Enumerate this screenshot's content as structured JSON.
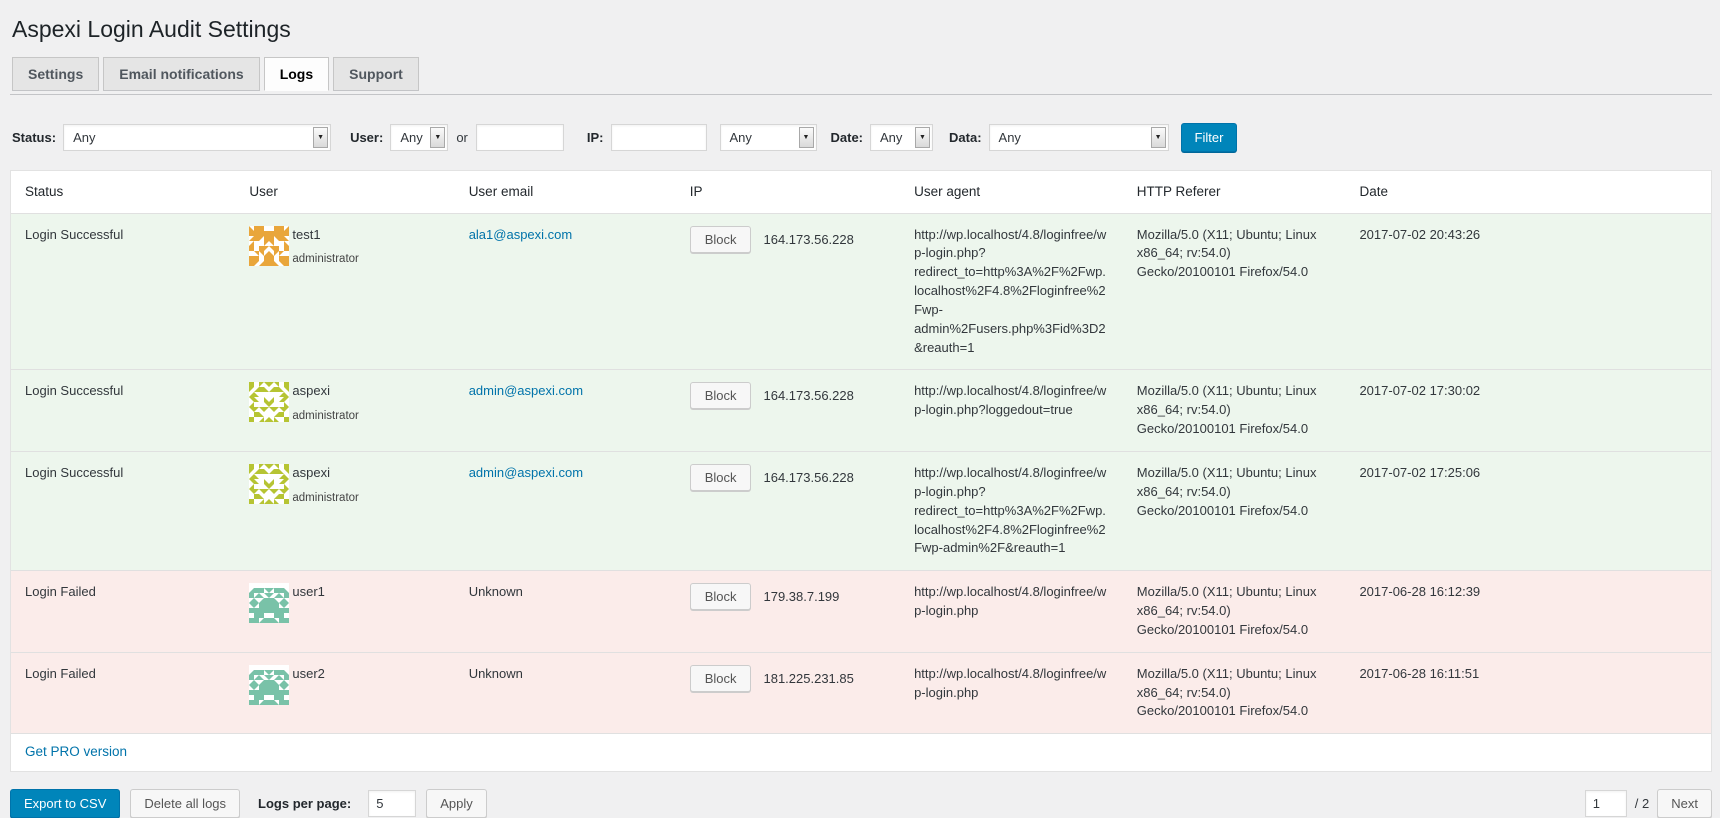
{
  "page": {
    "title": "Aspexi Login Audit Settings"
  },
  "tabs": [
    {
      "label": "Settings",
      "active": false
    },
    {
      "label": "Email notifications",
      "active": false
    },
    {
      "label": "Logs",
      "active": true
    },
    {
      "label": "Support",
      "active": false
    }
  ],
  "filters": {
    "status_label": "Status:",
    "status_value": "Any",
    "user_label": "User:",
    "user_value": "Any",
    "or_label": "or",
    "user_input": "",
    "ip_label": "IP:",
    "ip_input": "",
    "ip_any_value": "Any",
    "date_label": "Date:",
    "date_value": "Any",
    "data_label": "Data:",
    "data_value": "Any",
    "filter_button": "Filter"
  },
  "table": {
    "columns": [
      "Status",
      "User",
      "User email",
      "IP",
      "User agent",
      "HTTP Referer",
      "Date"
    ],
    "block_label": "Block",
    "get_pro_label": "Get PRO version",
    "rows": [
      {
        "status": "Login Successful",
        "status_type": "success",
        "user": "test1",
        "role": "administrator",
        "avatar_color": "#e9a63b",
        "avatar_seed": 7,
        "email": "ala1@aspexi.com",
        "email_is_link": true,
        "ip": "164.173.56.228",
        "user_agent": "http://wp.localhost/4.8/loginfree/wp-login.php?redirect_to=http%3A%2F%2Fwp.localhost%2F4.8%2Floginfree%2Fwp-admin%2Fusers.php%3Fid%3D2&reauth=1",
        "http_referer": "Mozilla/5.0 (X11; Ubuntu; Linux x86_64; rv:54.0) Gecko/20100101 Firefox/54.0",
        "date": "2017-07-02 20:43:26"
      },
      {
        "status": "Login Successful",
        "status_type": "success",
        "user": "aspexi",
        "role": "administrator",
        "avatar_color": "#b6c433",
        "avatar_seed": 3,
        "email": "admin@aspexi.com",
        "email_is_link": true,
        "ip": "164.173.56.228",
        "user_agent": "http://wp.localhost/4.8/loginfree/wp-login.php?loggedout=true",
        "http_referer": "Mozilla/5.0 (X11; Ubuntu; Linux x86_64; rv:54.0) Gecko/20100101 Firefox/54.0",
        "date": "2017-07-02 17:30:02"
      },
      {
        "status": "Login Successful",
        "status_type": "success",
        "user": "aspexi",
        "role": "administrator",
        "avatar_color": "#b6c433",
        "avatar_seed": 3,
        "email": "admin@aspexi.com",
        "email_is_link": true,
        "ip": "164.173.56.228",
        "user_agent": "http://wp.localhost/4.8/loginfree/wp-login.php?redirect_to=http%3A%2F%2Fwp.localhost%2F4.8%2Floginfree%2Fwp-admin%2F&reauth=1",
        "http_referer": "Mozilla/5.0 (X11; Ubuntu; Linux x86_64; rv:54.0) Gecko/20100101 Firefox/54.0",
        "date": "2017-07-02 17:25:06"
      },
      {
        "status": "Login Failed",
        "status_type": "failed",
        "user": "user1",
        "role": "",
        "avatar_color": "#79c2a8",
        "avatar_seed": 12,
        "email": "Unknown",
        "email_is_link": false,
        "ip": "179.38.7.199",
        "user_agent": "http://wp.localhost/4.8/loginfree/wp-login.php",
        "http_referer": "Mozilla/5.0 (X11; Ubuntu; Linux x86_64; rv:54.0) Gecko/20100101 Firefox/54.0",
        "date": "2017-06-28 16:12:39"
      },
      {
        "status": "Login Failed",
        "status_type": "failed",
        "user": "user2",
        "role": "",
        "avatar_color": "#79c2a8",
        "avatar_seed": 12,
        "email": "Unknown",
        "email_is_link": false,
        "ip": "181.225.231.85",
        "user_agent": "http://wp.localhost/4.8/loginfree/wp-login.php",
        "http_referer": "Mozilla/5.0 (X11; Ubuntu; Linux x86_64; rv:54.0) Gecko/20100101 Firefox/54.0",
        "date": "2017-06-28 16:11:51"
      }
    ]
  },
  "footer": {
    "export_csv": "Export to CSV",
    "delete_all": "Delete all logs",
    "logs_per_page_label": "Logs per page:",
    "logs_per_page_value": "5",
    "apply": "Apply",
    "page_value": "1",
    "page_total": "/ 2",
    "next": "Next"
  },
  "colors": {
    "accent_blue": "#0085ba",
    "link_blue": "#0073aa",
    "success_row_bg": "#edf6ed",
    "failed_row_bg": "#fbecea",
    "page_bg": "#f0f0f1"
  }
}
